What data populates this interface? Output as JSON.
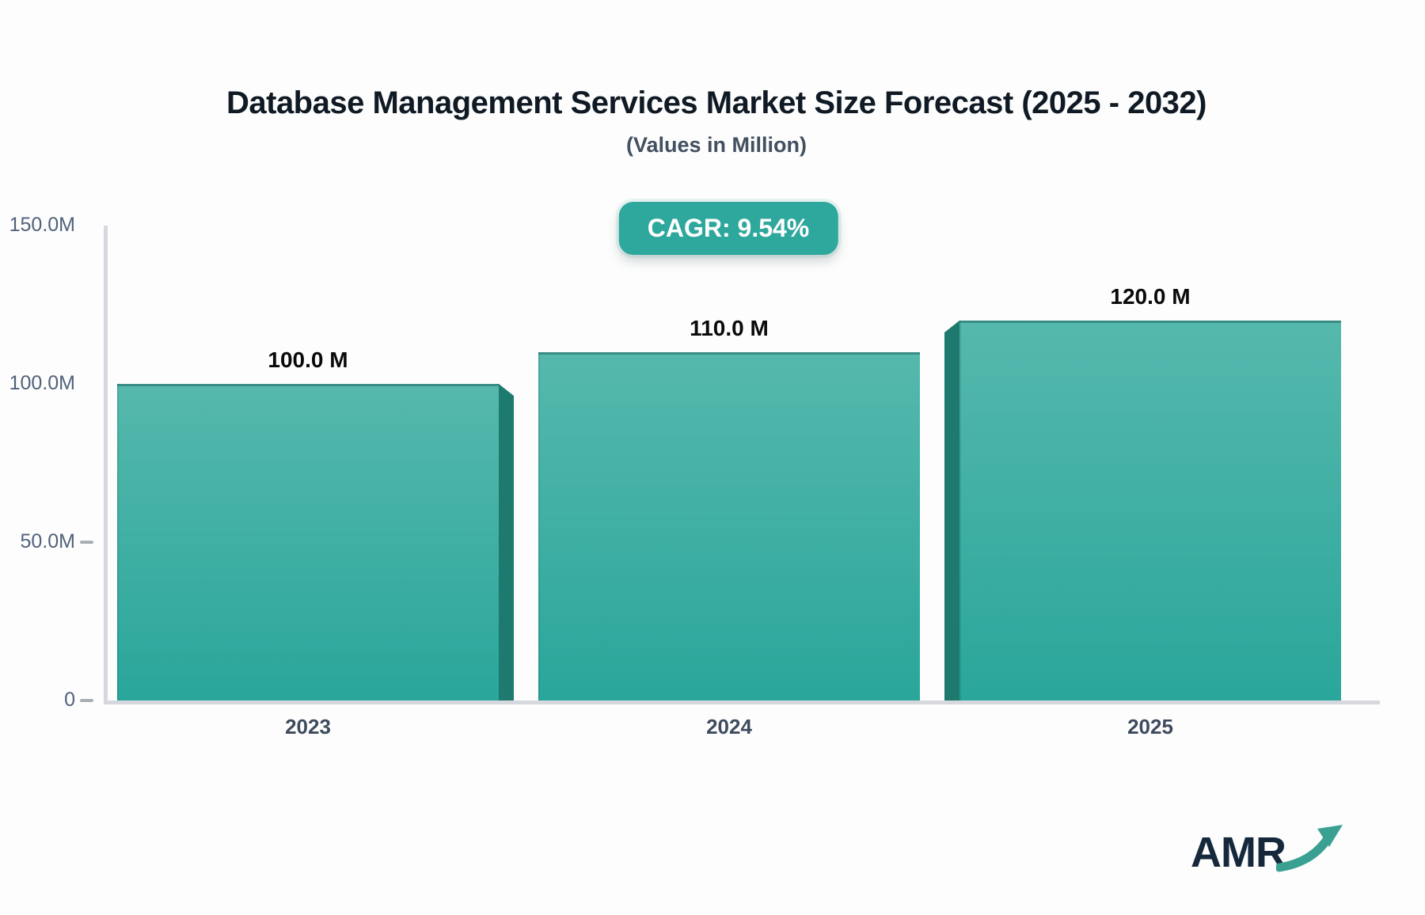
{
  "header": {
    "title": "Database Management Services Market Size Forecast (2025 - 2032)",
    "subtitle": "(Values in Million)",
    "cagr_badge_label": "CAGR: 9.54%"
  },
  "chart_data": {
    "type": "bar",
    "title": "Database Management Services Market Size Forecast (2025 - 2032)",
    "subtitle": "(Values in Million)",
    "unit": "Million",
    "categories": [
      "2023",
      "2024",
      "2025"
    ],
    "values": [
      100.0,
      110.0,
      120.0
    ],
    "bar_value_labels": [
      "100.0 M",
      "110.0 M",
      "120.0 M"
    ],
    "cagr_percent": 9.54,
    "ylim": [
      0,
      150
    ],
    "yticks": [
      {
        "label": "150.0M",
        "value": 150,
        "dash": false
      },
      {
        "label": "100.0M",
        "value": 100,
        "dash": false
      },
      {
        "label": "50.0M",
        "value": 50,
        "dash": true
      },
      {
        "label": "0",
        "value": 0,
        "dash": true
      }
    ],
    "grid": false,
    "legend": "none",
    "bar_style": {
      "face_top": "#56b8ad",
      "face_bottom": "#2aa69a",
      "side_shadow": "#1e7a6f",
      "sides": [
        "right",
        "none",
        "left"
      ]
    }
  },
  "logo": {
    "text": "AMR",
    "text_color": "#16293c",
    "arrow_color": "#3aa091"
  },
  "colors": {
    "badge_bg": "#2ea79c",
    "badge_text": "#ffffff",
    "axis_line": "#d6d8dd",
    "tick_label": "#51627b",
    "category_label": "#3d4b5d",
    "value_label": "#0a0a0a",
    "title": "#101a24",
    "subtitle": "#42505f"
  }
}
